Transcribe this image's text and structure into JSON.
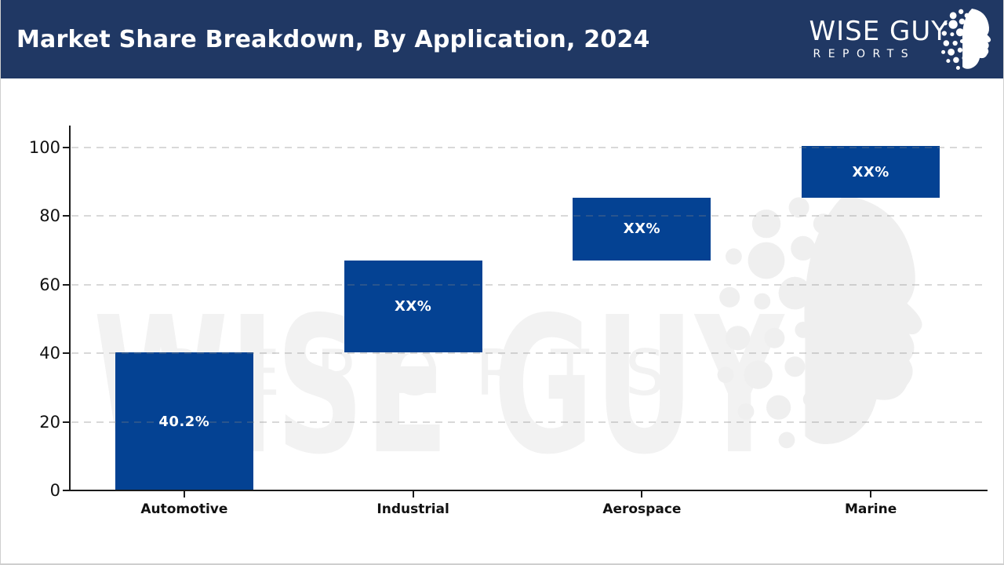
{
  "header": {
    "title": "Market Share Breakdown, By Application, 2024",
    "logo": {
      "line1": "WISE GUY",
      "line2": "REPORTS"
    }
  },
  "watermark": {
    "line1": "WISE GUY",
    "line2": "REPORTS"
  },
  "colors": {
    "header_bg": "#203864",
    "bar_blue": "#044293",
    "axis": "#1a1a1a",
    "gridline": "#d9d9d9",
    "watermark_gray": "#f2f2f2",
    "bar_label_text": "#ffffff"
  },
  "chart_data": {
    "type": "bar",
    "subtype": "floating-waterfall",
    "title": "Market Share Breakdown, By Application, 2024",
    "categories": [
      "Automotive",
      "Industrial",
      "Aerospace",
      "Marine"
    ],
    "segments": [
      {
        "category": "Automotive",
        "start": 0,
        "end": 40.2,
        "label": "40.2%"
      },
      {
        "category": "Industrial",
        "start": 40.2,
        "end": 67.0,
        "label": "XX%"
      },
      {
        "category": "Aerospace",
        "start": 67.0,
        "end": 85.3,
        "label": "XX%"
      },
      {
        "category": "Marine",
        "start": 85.3,
        "end": 100.3,
        "label": "XX%"
      }
    ],
    "yticks": [
      0,
      20,
      40,
      60,
      80,
      100
    ],
    "ylim": [
      0,
      106
    ],
    "xlabel": "",
    "ylabel": "",
    "grid": "dashed-horizontal",
    "legend": "none"
  }
}
